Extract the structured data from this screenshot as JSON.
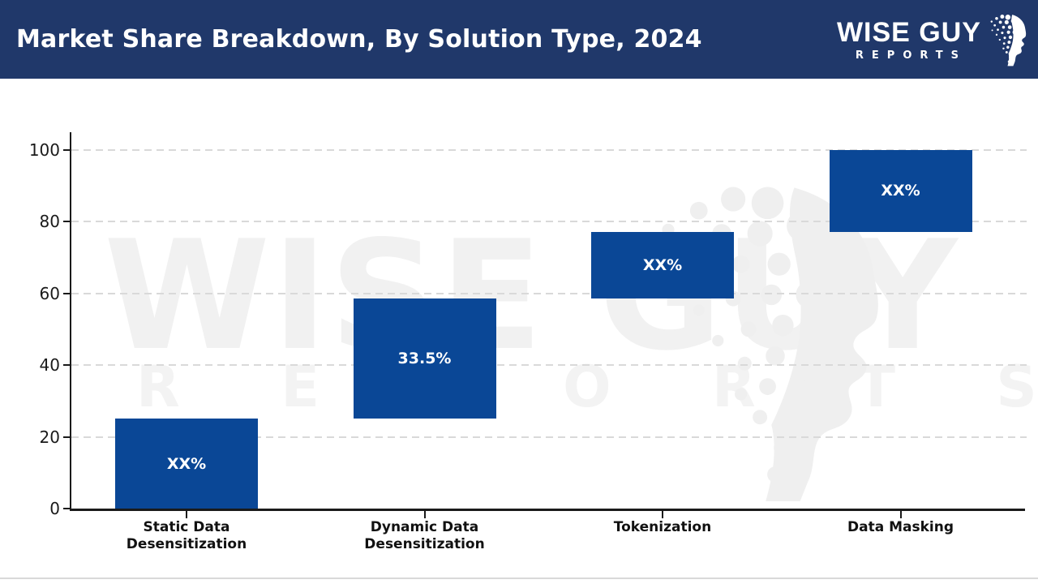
{
  "header": {
    "title": "Market Share Breakdown, By Solution Type, 2024",
    "background_color": "#20386a",
    "logo": {
      "wordmark": "WISE GUY",
      "subtext": "REPORTS"
    }
  },
  "watermark": {
    "line1": "WISE GUY",
    "line2": "R E P O R T S"
  },
  "chart_data": {
    "type": "bar",
    "subtype": "waterfall-floating-bars",
    "title": "Market Share Breakdown, By Solution Type, 2024",
    "xlabel": "",
    "ylabel": "",
    "ylim": [
      0,
      105
    ],
    "yticks": [
      0,
      20,
      40,
      60,
      80,
      100
    ],
    "grid": "horizontal-dashed",
    "legend": "none",
    "bar_color": "#0a4796",
    "bar_label_color": "#ffffff",
    "categories": [
      "Static Data Desensitization",
      "Dynamic Data Desensitization",
      "Tokenization",
      "Data Masking"
    ],
    "category_lines": [
      [
        "Static Data",
        "Desensitization"
      ],
      [
        "Dynamic Data",
        "Desensitization"
      ],
      [
        "Tokenization"
      ],
      [
        "Data Masking"
      ]
    ],
    "segments": [
      {
        "category": "Static Data Desensitization",
        "start": 0,
        "end": 25,
        "value": 25,
        "label": "XX%"
      },
      {
        "category": "Dynamic Data Desensitization",
        "start": 25,
        "end": 58.5,
        "value": 33.5,
        "label": "33.5%"
      },
      {
        "category": "Tokenization",
        "start": 58.5,
        "end": 77,
        "value": 18.5,
        "label": "XX%"
      },
      {
        "category": "Data Masking",
        "start": 77,
        "end": 100,
        "value": 23,
        "label": "XX%"
      }
    ]
  }
}
